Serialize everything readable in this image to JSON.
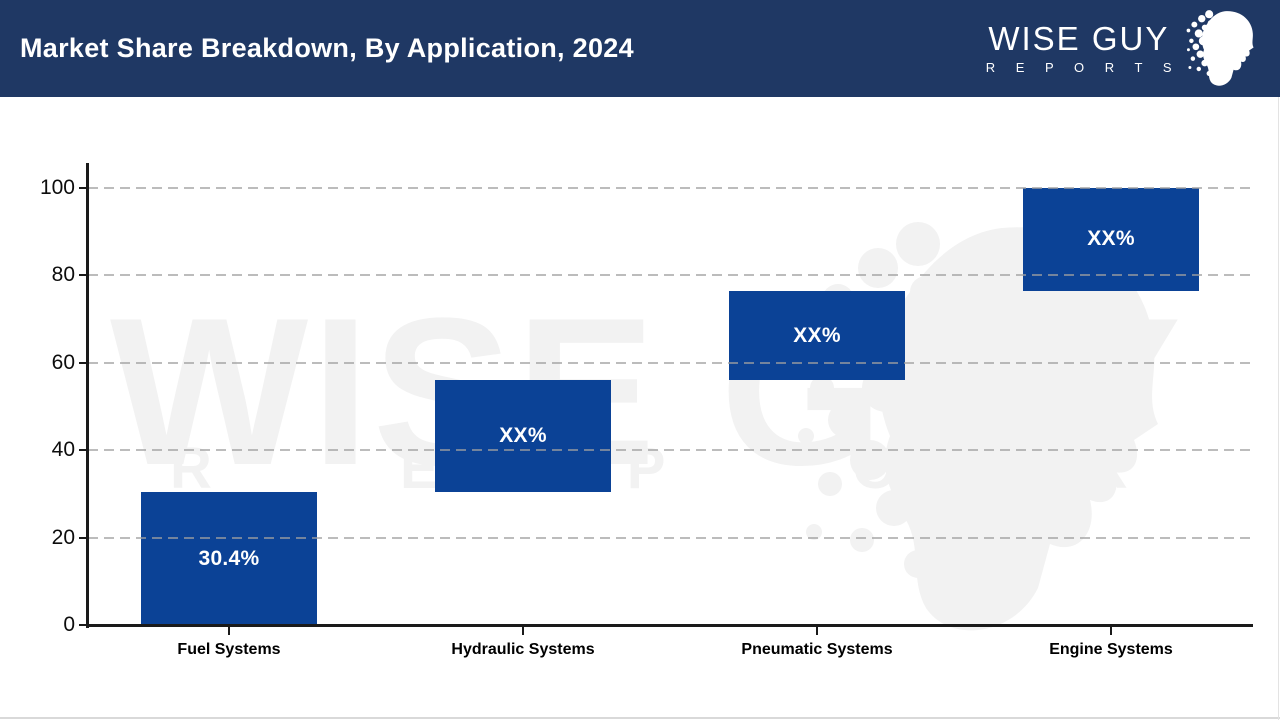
{
  "header": {
    "title": "Market Share Breakdown, By Application, 2024",
    "brand": {
      "line1": "WISE GUY",
      "line2": "R E P O R T S"
    }
  },
  "watermark": {
    "line1": "WISE GUY",
    "line2": "R E P O R T S"
  },
  "chart_data": {
    "type": "bar",
    "subtype": "waterfall-stacked-percentage",
    "title": "Market Share Breakdown, By Application, 2024",
    "categories": [
      "Fuel Systems",
      "Hydraulic Systems",
      "Pneumatic Systems",
      "Engine Systems"
    ],
    "segments": [
      {
        "category": "Fuel Systems",
        "start": 0,
        "end": 30.4,
        "label": "30.4%"
      },
      {
        "category": "Hydraulic Systems",
        "start": 30.4,
        "end": 56.0,
        "label": "XX%"
      },
      {
        "category": "Pneumatic Systems",
        "start": 56.0,
        "end": 76.3,
        "label": "XX%"
      },
      {
        "category": "Engine Systems",
        "start": 76.3,
        "end": 100,
        "label": "XX%"
      }
    ],
    "xlabel": "",
    "ylabel": "",
    "ylim": [
      0,
      105.5
    ],
    "yticks": [
      0,
      20,
      40,
      60,
      80,
      100
    ],
    "grid": "horizontal-dashed",
    "legend": "none",
    "bar_color": "#0b4296",
    "bar_label_color": "#ffffff"
  },
  "colors": {
    "header_bg": "#1f3864",
    "bar": "#0b4296",
    "axis": "#1a1a1a",
    "gridline": "#d9d9d9",
    "watermark": "#f2f2f2"
  }
}
